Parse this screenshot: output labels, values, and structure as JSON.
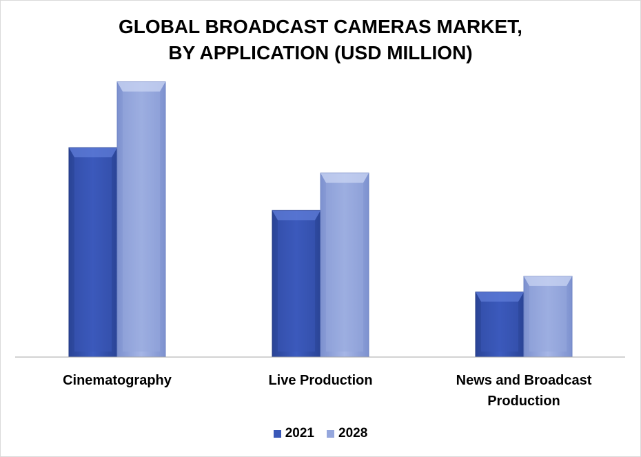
{
  "chart_data": {
    "type": "bar",
    "title": "GLOBAL BROADCAST CAMERAS MARKET,\nBY APPLICATION (USD MILLION)",
    "categories": [
      "Cinematography",
      "Live Production",
      "News and Broadcast Production"
    ],
    "series": [
      {
        "name": "2021",
        "values": [
          280,
          196,
          87
        ],
        "color": "#3a58b8"
      },
      {
        "name": "2028",
        "values": [
          368,
          246,
          108
        ],
        "color": "#95a7dd"
      }
    ],
    "ylim": [
      0,
      400
    ],
    "grid": false,
    "legend_position": "bottom"
  }
}
